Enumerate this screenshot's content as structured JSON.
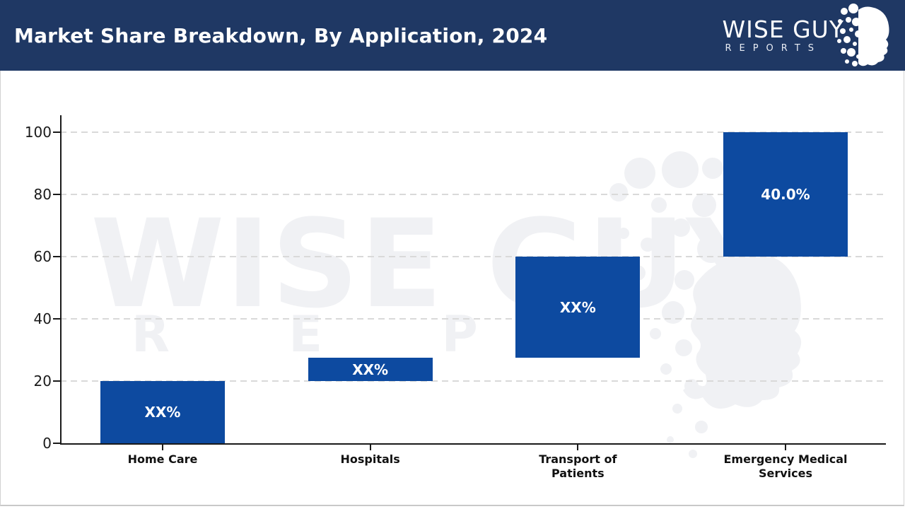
{
  "header": {
    "title": "Market Share Breakdown, By Application, 2024",
    "logo_line1": "WISE GUY",
    "logo_line2": "REPORTS"
  },
  "watermark": {
    "line1": "WISE GUY",
    "line2": "R E P O R T S"
  },
  "chart_data": {
    "type": "bar",
    "variant": "floating-segment-waterfall",
    "title": "Market Share Breakdown, By Application, 2024",
    "categories": [
      "Home Care",
      "Hospitals",
      "Transport of Patients",
      "Emergency Medical Services"
    ],
    "tick_labels": [
      "Home Care",
      "Hospitals",
      "Transport of\nPatients",
      "Emergency Medical\nServices"
    ],
    "segments": [
      {
        "category": "Home Care",
        "start": 0,
        "end": 20,
        "value": 20,
        "label": "XX%"
      },
      {
        "category": "Hospitals",
        "start": 20,
        "end": 27.5,
        "value": 7.5,
        "label": "XX%"
      },
      {
        "category": "Transport of Patients",
        "start": 27.5,
        "end": 60,
        "value": 32.5,
        "label": "XX%"
      },
      {
        "category": "Emergency Medical Services",
        "start": 60,
        "end": 100,
        "value": 40,
        "label": "40.0%"
      }
    ],
    "ylim": [
      0,
      100
    ],
    "yticks": [
      0,
      20,
      40,
      60,
      80,
      100
    ],
    "xlabel": "",
    "ylabel": "",
    "legend": null,
    "grid": "horizontal-dashed",
    "colors": {
      "bar": "#0d4aa0",
      "bar_label": "#ffffff",
      "grid_line": "#d9d9d9",
      "axis": "#1a1a1a",
      "header_bg": "#1f3864",
      "watermark": "#f0f1f4"
    }
  }
}
